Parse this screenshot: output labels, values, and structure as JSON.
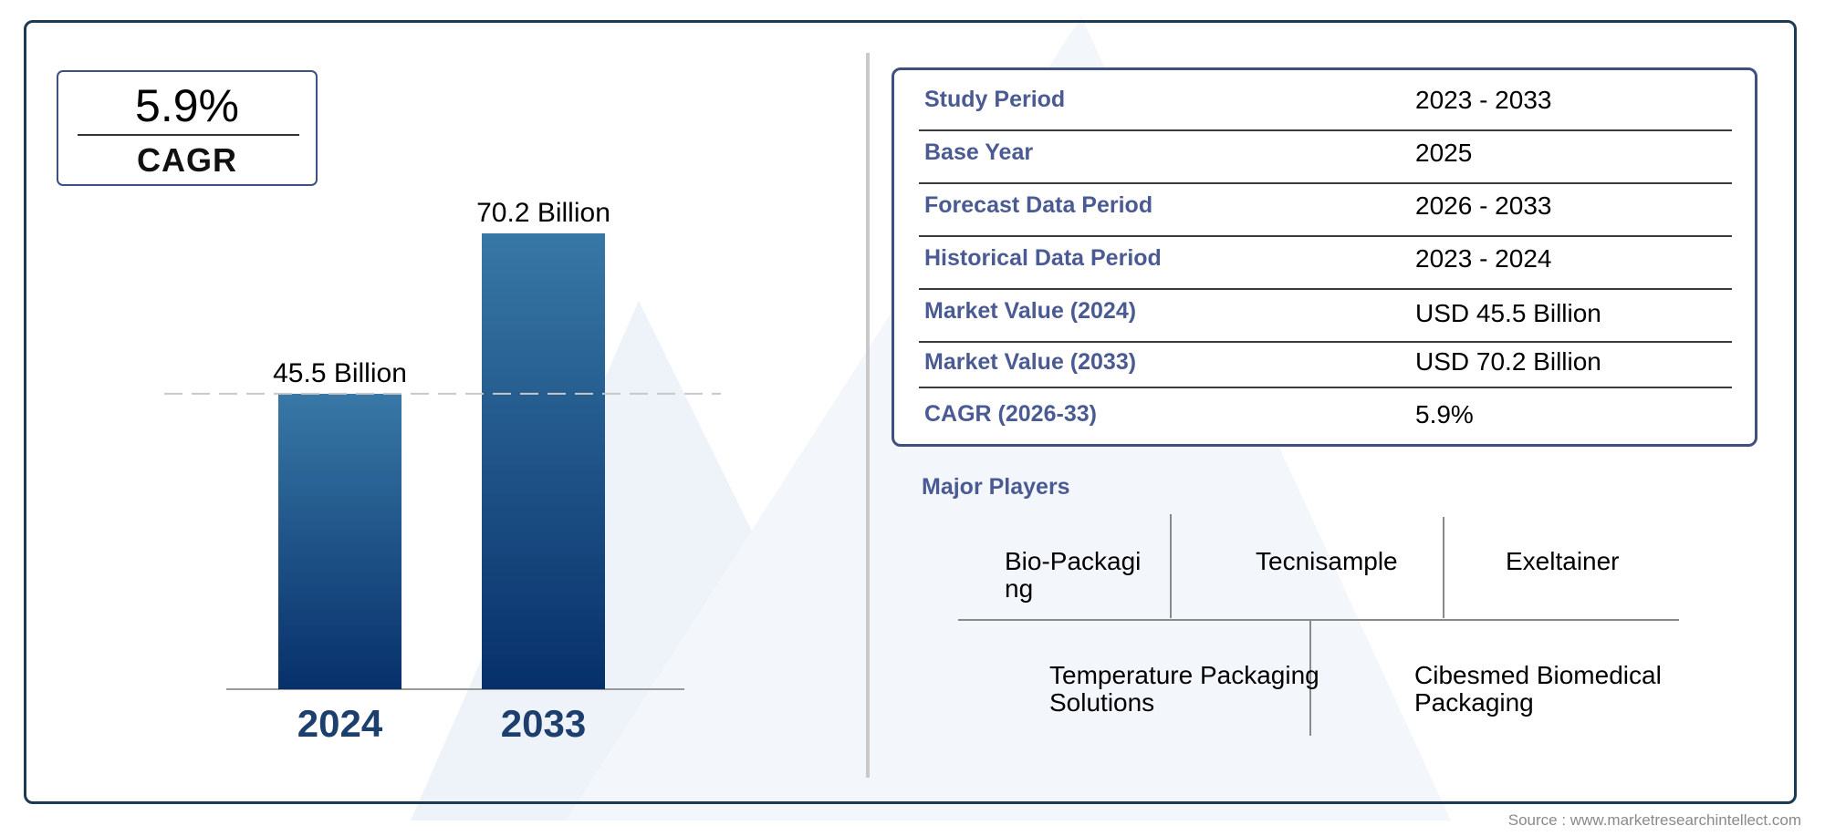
{
  "summary": {
    "cagr_value": "5.9%",
    "cagr_label": "CAGR"
  },
  "chart_data": {
    "type": "bar",
    "categories": [
      "2024",
      "2033"
    ],
    "values": [
      45.5,
      70.2
    ],
    "data_labels": [
      "45.5 Billion",
      "70.2 Billion"
    ],
    "title": "",
    "xlabel": "",
    "ylabel": "",
    "reference_line": 45.5,
    "colors": {
      "bar_top": "#3878a6",
      "bar_bottom": "#07306a",
      "year_label": "#1c3f6e"
    },
    "grid": false,
    "legend": "none"
  },
  "info_table": {
    "rows": [
      {
        "label": "Study Period",
        "value": "2023 - 2033"
      },
      {
        "label": "Base Year",
        "value": "2025"
      },
      {
        "label": "Forecast Data Period",
        "value": "2026 - 2033"
      },
      {
        "label": "Historical Data Period",
        "value": "2023 - 2024"
      },
      {
        "label": "Market Value (2024)",
        "value": "USD 45.5 Billion"
      },
      {
        "label": "Market Value (2033)",
        "value": "USD 70.2 Billion"
      },
      {
        "label": "CAGR (2026-33)",
        "value": "5.9%"
      }
    ]
  },
  "players": {
    "title": "Major Players",
    "names": [
      [
        "Bio-Packagi",
        "ng"
      ],
      [
        "Tecnisample"
      ],
      [
        "Exeltainer"
      ],
      [
        "Temperature Packaging",
        "Solutions"
      ],
      [
        "Cibesmed Biomedical",
        "Packaging"
      ]
    ]
  },
  "source": "Source : www.marketresearchintellect.com"
}
